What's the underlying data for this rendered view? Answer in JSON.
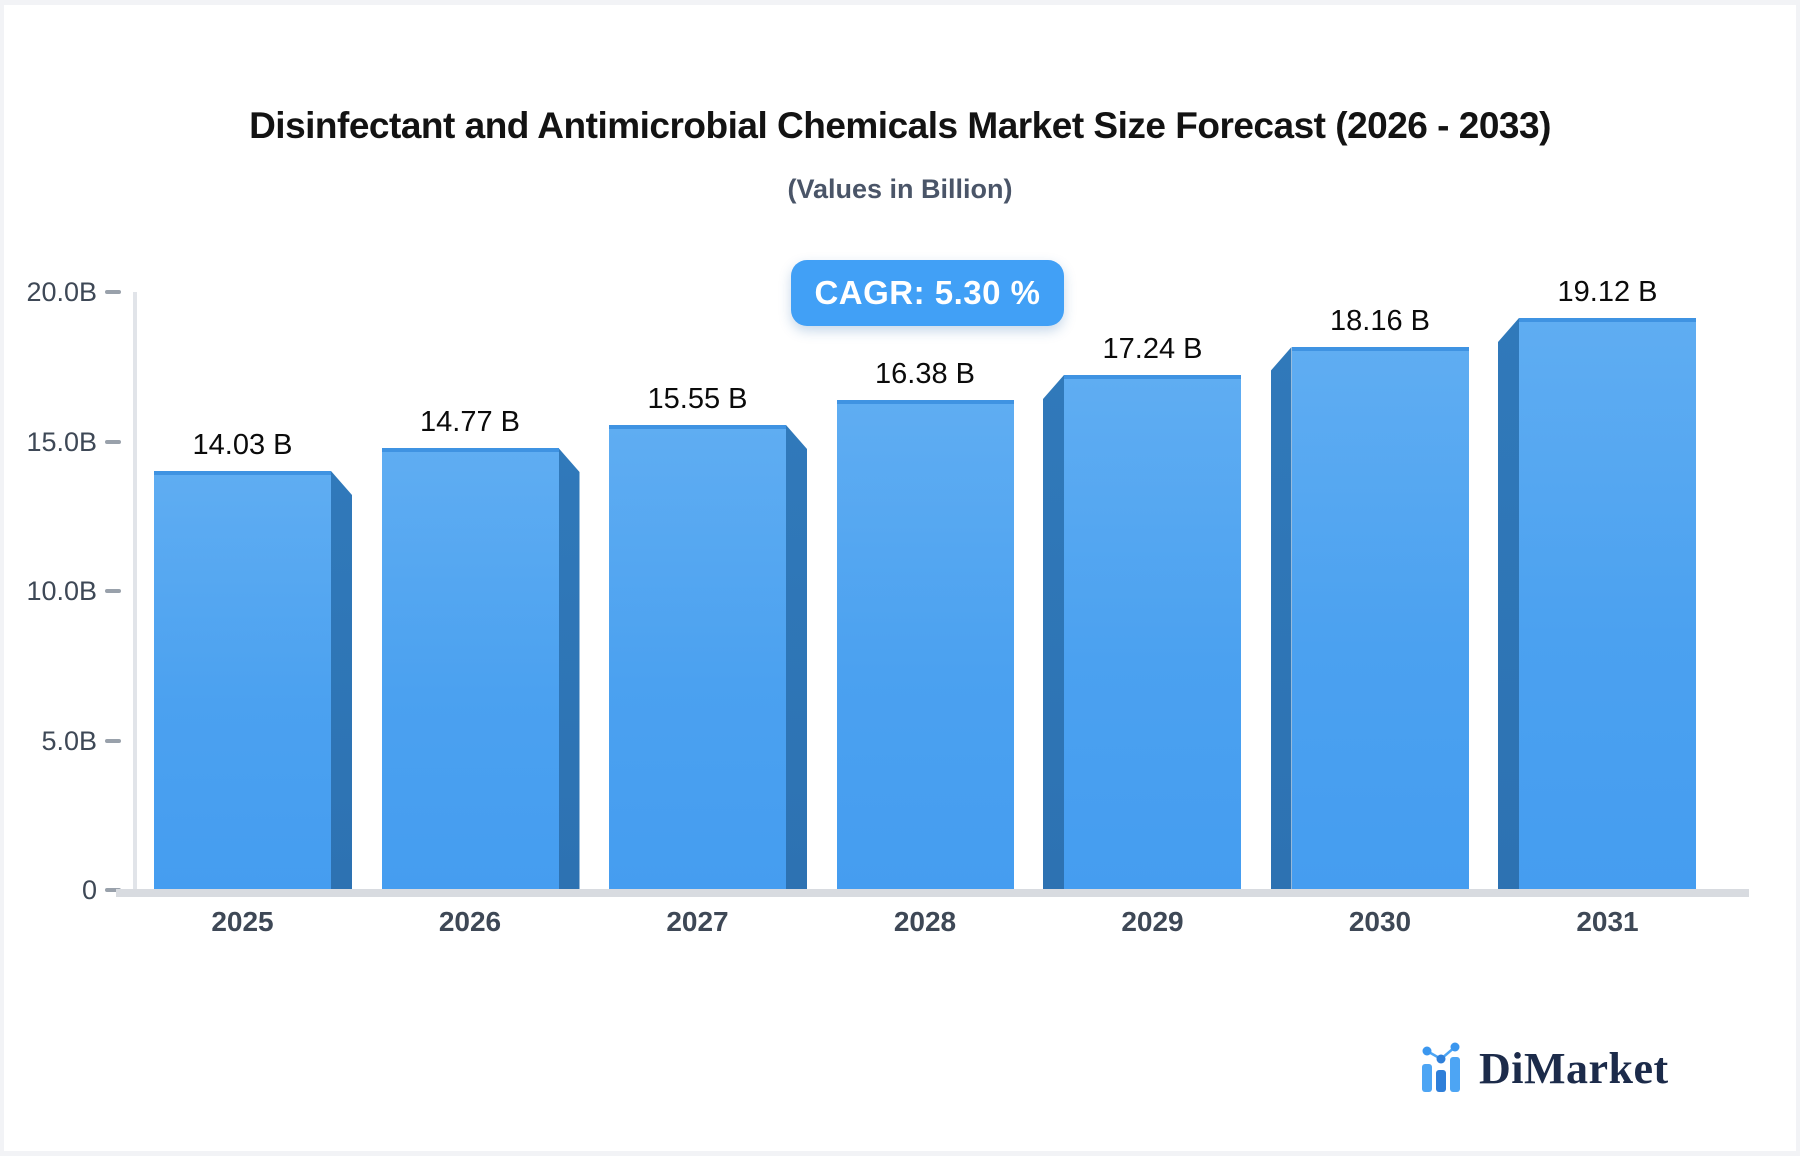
{
  "header": {
    "title": "Disinfectant and Antimicrobial Chemicals Market Size Forecast (2026 - 2033)",
    "subtitle": "(Values in Billion)"
  },
  "badge": {
    "label": "CAGR: 5.30 %"
  },
  "chart_data": {
    "type": "bar",
    "title": "Disinfectant and Antimicrobial Chemicals Market Size Forecast (2026 - 2033)",
    "subtitle": "(Values in Billion)",
    "categories": [
      "2025",
      "2026",
      "2027",
      "2028",
      "2029",
      "2030",
      "2031"
    ],
    "values": [
      14.03,
      14.77,
      15.55,
      16.38,
      17.24,
      18.16,
      19.12
    ],
    "value_labels": [
      "14.03 B",
      "14.77 B",
      "15.55 B",
      "16.38 B",
      "17.24 B",
      "18.16 B",
      "19.12 B"
    ],
    "y_axis": {
      "tick_labels": [
        "20.0B",
        "15.0B",
        "10.0B",
        "5.0B",
        "0"
      ],
      "tick_values": [
        20,
        15,
        10,
        5,
        0
      ],
      "range": [
        0,
        20
      ],
      "grid": false
    },
    "legend": "none",
    "colors": {
      "bar_face": "#55a4ef",
      "bar_side": "#2e76b6",
      "bar_top_edge": "#3f93e2",
      "badge_bg": "#41a0f6",
      "axis_text": "#3e4856",
      "baseline": "#d8dbe0"
    }
  },
  "logo": {
    "text": "DiMarket",
    "icon": "mini-bar-chart-with-dots"
  }
}
